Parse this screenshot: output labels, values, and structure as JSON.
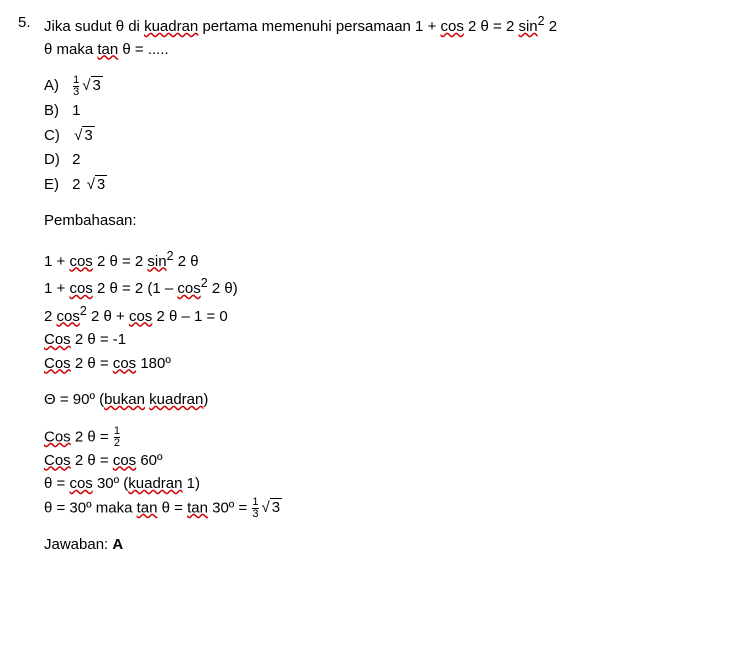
{
  "question": {
    "number": "5.",
    "line1_pre": "Jika sudut θ di ",
    "line1_sp1": "kuadran",
    "line1_mid1": " pertama memenuhi persamaan 1 + ",
    "line1_sp2": "cos",
    "line1_mid2": " 2 θ = 2 ",
    "line1_sp3": "sin",
    "line1_sup": "2",
    "line1_end": " 2",
    "line2_pre": "θ maka ",
    "line2_sp1": "tan",
    "line2_end": " θ = ....."
  },
  "options": {
    "A": {
      "letter": "A)",
      "frac_n": "1",
      "frac_d": "3",
      "rad": "3"
    },
    "B": {
      "letter": "B)",
      "val": "1"
    },
    "C": {
      "letter": "C)",
      "rad": "3"
    },
    "D": {
      "letter": "D)",
      "val": "2"
    },
    "E": {
      "letter": "E)",
      "pre": "2 ",
      "rad": "3"
    }
  },
  "labels": {
    "pembahasan": "Pembahasan:",
    "jawaban": "Jawaban: ",
    "jawaban_val": "A"
  },
  "work": {
    "g1": {
      "l1": {
        "p1": "1 + ",
        "s1": "cos",
        "p2": " 2 θ = 2 ",
        "s2": "sin",
        "sup": "2",
        "p3": " 2 θ"
      },
      "l2": {
        "p1": "1 + ",
        "s1": "cos",
        "p2": " 2 θ = 2 (1 – ",
        "s2": "cos",
        "sup": "2",
        "p3": " 2 θ)"
      },
      "l3": {
        "p1": "2 ",
        "s1": "cos",
        "sup": "2",
        "p2": " 2 θ + ",
        "s2": "cos",
        "p3": " 2 θ – 1 = 0"
      },
      "l4": {
        "s1": "Cos",
        "p1": " 2 θ = -1"
      },
      "l5": {
        "s1": "Cos",
        "p1": " 2 θ = ",
        "s2": "cos",
        "p2": " 180º"
      }
    },
    "g2": {
      "l1": {
        "p1": "Θ = 90º (",
        "s1": "bukan",
        "p2": " ",
        "s2": "kuadran",
        "p3": ")"
      }
    },
    "g3": {
      "l1": {
        "s1": "Cos",
        "p1": " 2 θ = ",
        "fn": "1",
        "fd": "2"
      },
      "l2": {
        "s1": "Cos",
        "p1": " 2 θ = ",
        "s2": "cos",
        "p2": " 60º"
      },
      "l3": {
        "p1": "θ = ",
        "s1": "cos",
        "p2": " 30º (",
        "s2": "kuadran",
        "p3": " 1)"
      },
      "l4": {
        "p1": "θ = 30º maka ",
        "s1": "tan",
        "p2": " θ = ",
        "s2": "tan",
        "p3": " 30º = ",
        "fn": "1",
        "fd": "3",
        "rad": "3"
      }
    }
  }
}
